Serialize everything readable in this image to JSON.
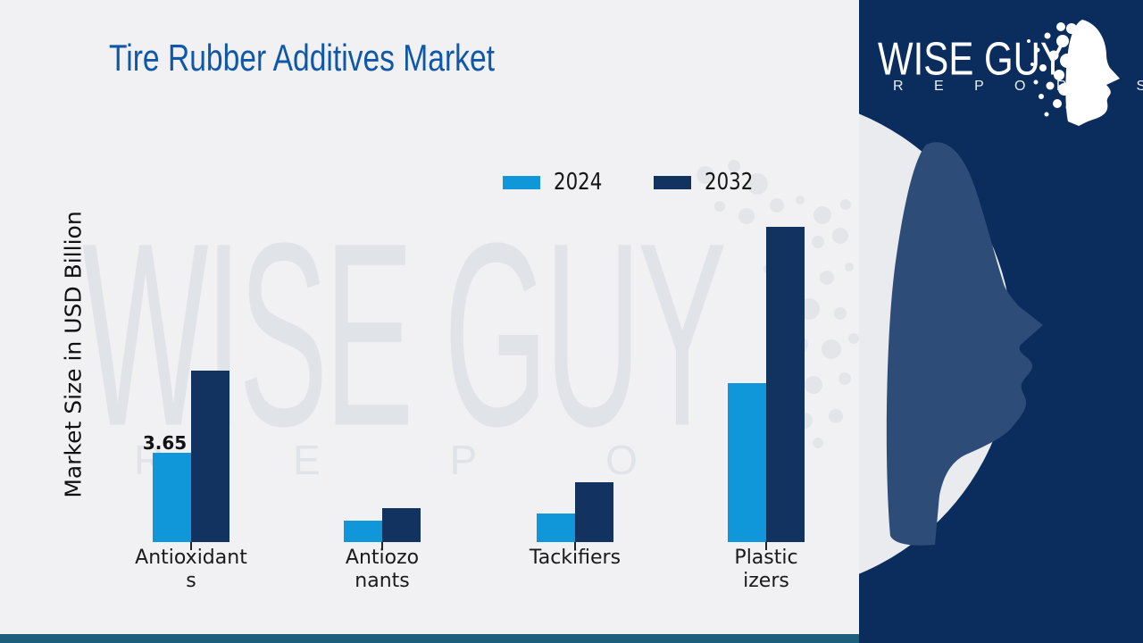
{
  "title": "Tire Rubber Additives Market",
  "watermark": {
    "line1": "WISE GUY",
    "line2": "R E P O R T S"
  },
  "logo": {
    "line1": "WISE GUY",
    "line2": "R E P O R T S"
  },
  "colors": {
    "background": "#f1f1f3",
    "title_blue": "#0f57a8",
    "series_2024": "#1097da",
    "series_2032": "#12325f",
    "panel_navy": "#0a2d5e",
    "panel_face": "#2d4c77",
    "teal_strip": "#1c5f7d",
    "watermark_gray": "#e0e3e8"
  },
  "chart_data": {
    "type": "bar",
    "title": "Tire Rubber Additives Market",
    "xlabel": "",
    "ylabel": "Market Size in USD Billion",
    "categories": [
      "Antioxidants",
      "Antiozonants",
      "Tackifiers",
      "Plasticizers"
    ],
    "category_display": [
      "Antioxidant\ns",
      "Antiozo\nnants",
      "Tackifiers",
      "Plastic\nizers"
    ],
    "series": [
      {
        "name": "2024",
        "color": "#1097da",
        "values": [
          3.65,
          0.88,
          1.17,
          6.5
        ]
      },
      {
        "name": "2032",
        "color": "#12325f",
        "values": [
          7.0,
          1.4,
          2.45,
          12.9
        ]
      }
    ],
    "data_labels": [
      {
        "series_index": 0,
        "category_index": 0,
        "text": "3.65"
      }
    ],
    "ylim": [
      0,
      14
    ],
    "grid": false,
    "legend_position": "top"
  }
}
